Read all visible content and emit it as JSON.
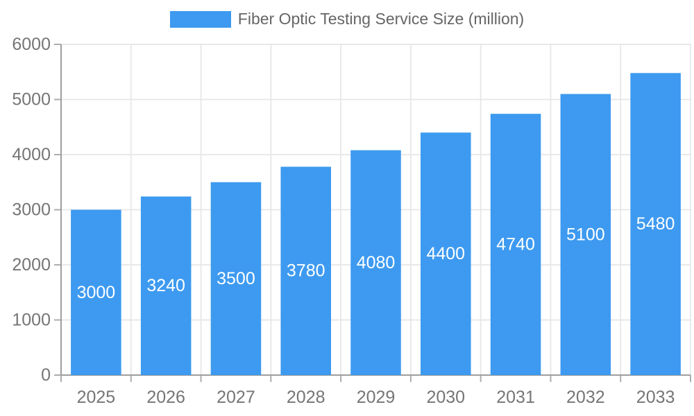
{
  "chart_data": {
    "type": "bar",
    "title": "Fiber Optic Testing Service Size (million)",
    "categories": [
      "2025",
      "2026",
      "2027",
      "2028",
      "2029",
      "2030",
      "2031",
      "2032",
      "2033"
    ],
    "values": [
      3000,
      3240,
      3500,
      3780,
      4080,
      4400,
      4740,
      5100,
      5480
    ],
    "series_name": "Fiber Optic Testing Service Size (million)",
    "xlabel": "",
    "ylabel": "",
    "ylim": [
      0,
      6000
    ],
    "yticks": [
      0,
      1000,
      2000,
      3000,
      4000,
      5000,
      6000
    ],
    "grid": true,
    "legend_position": "top",
    "bar_labels_inside": true,
    "colors": {
      "bar": "#3D9AF0",
      "bar_label": "#FFFFFF",
      "axis": "#9E9E9E",
      "grid": "#E6E6E6",
      "tick": "#ADADAD",
      "tick_label": "#757575",
      "legend_text": "#666666",
      "background": "#FFFFFF"
    }
  }
}
